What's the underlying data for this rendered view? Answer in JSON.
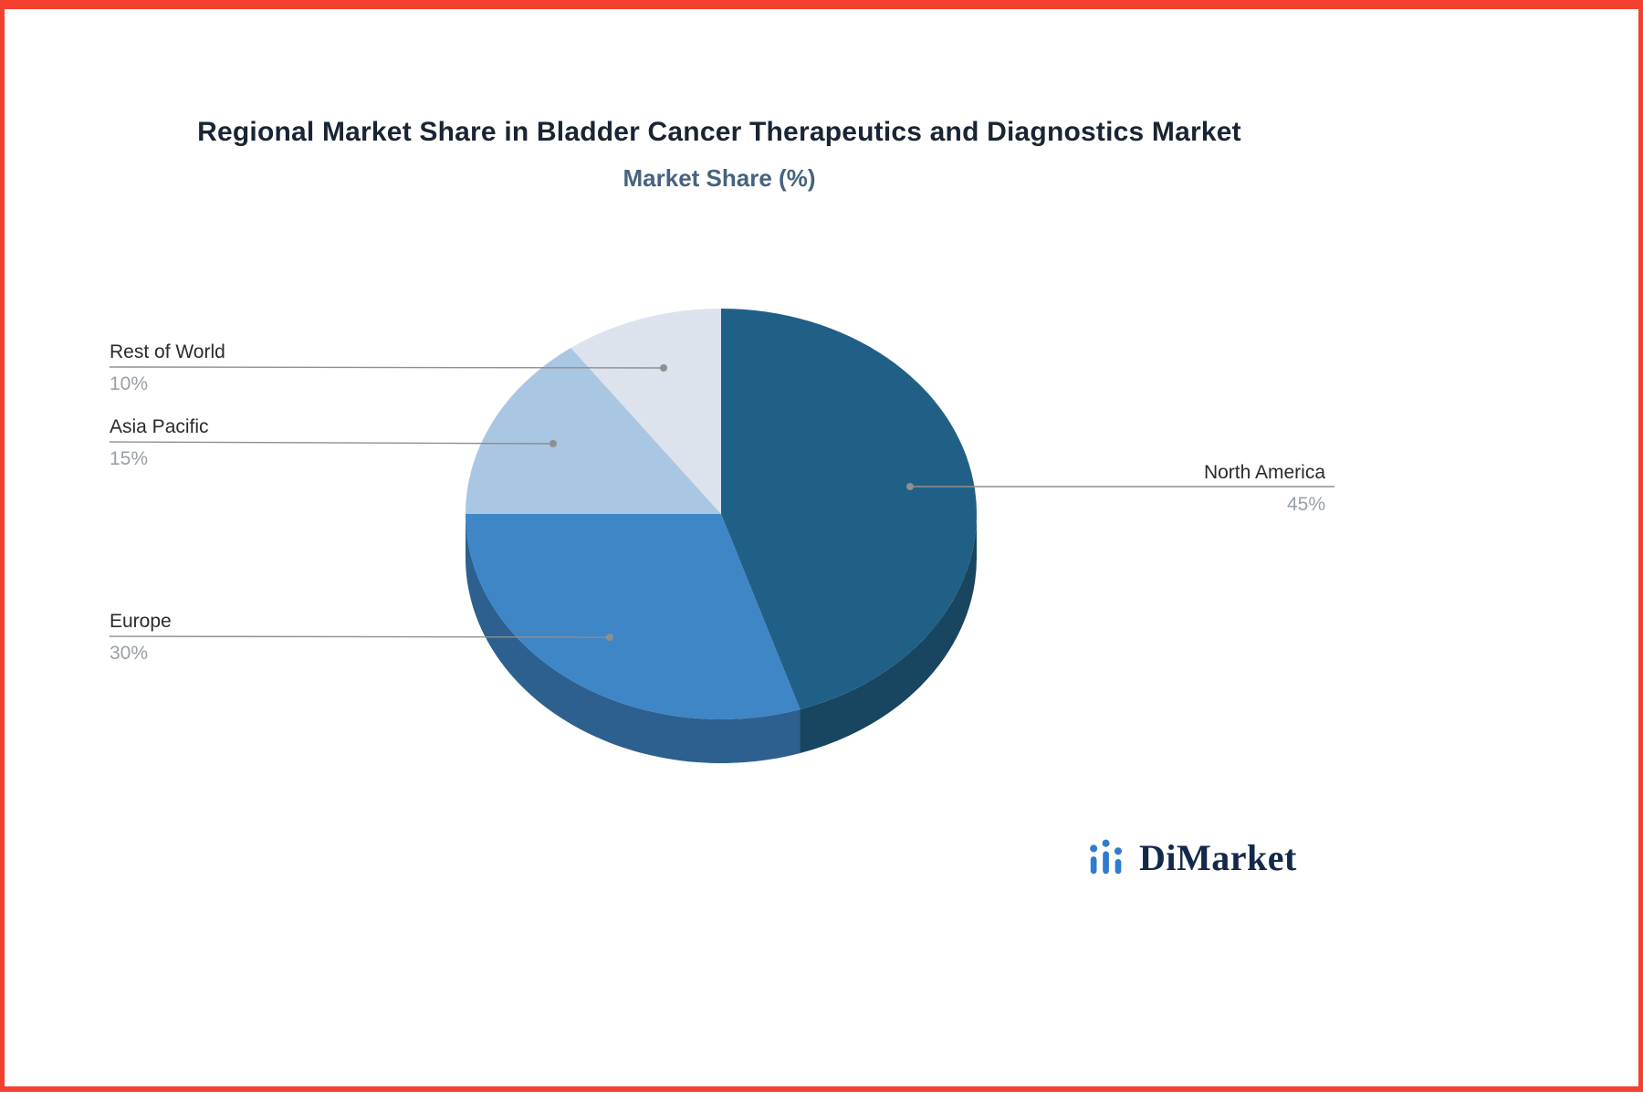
{
  "chart_data": {
    "type": "pie",
    "title": "Regional Market Share in Bladder Cancer Therapeutics and Diagnostics Market",
    "subtitle": "Market Share (%)",
    "unit": "%",
    "start_angle_deg": 0,
    "direction": "clockwise",
    "style": "3d",
    "legend_position": "callout-labels",
    "slices": [
      {
        "label": "North America",
        "value": 45,
        "display": "45%",
        "color": "#216086"
      },
      {
        "label": "Europe",
        "value": 30,
        "display": "30%",
        "color": "#3e86c6"
      },
      {
        "label": "Asia Pacific",
        "value": 15,
        "display": "15%",
        "color": "#a9c6e3"
      },
      {
        "label": "Rest of World",
        "value": 10,
        "display": "10%",
        "color": "#dce3ed"
      }
    ]
  },
  "branding": {
    "logo_text": "DiMarket"
  },
  "colors": {
    "background": "#ffffff",
    "frame": "#f4402f",
    "title": "#1a2533",
    "subtitle": "#47637e",
    "label_text": "#2b2b2b",
    "label_value": "#9aa0a6",
    "leader": "#8f8f8f",
    "logo_text": "#13294a",
    "logo_icon": "#2e7cd1"
  }
}
